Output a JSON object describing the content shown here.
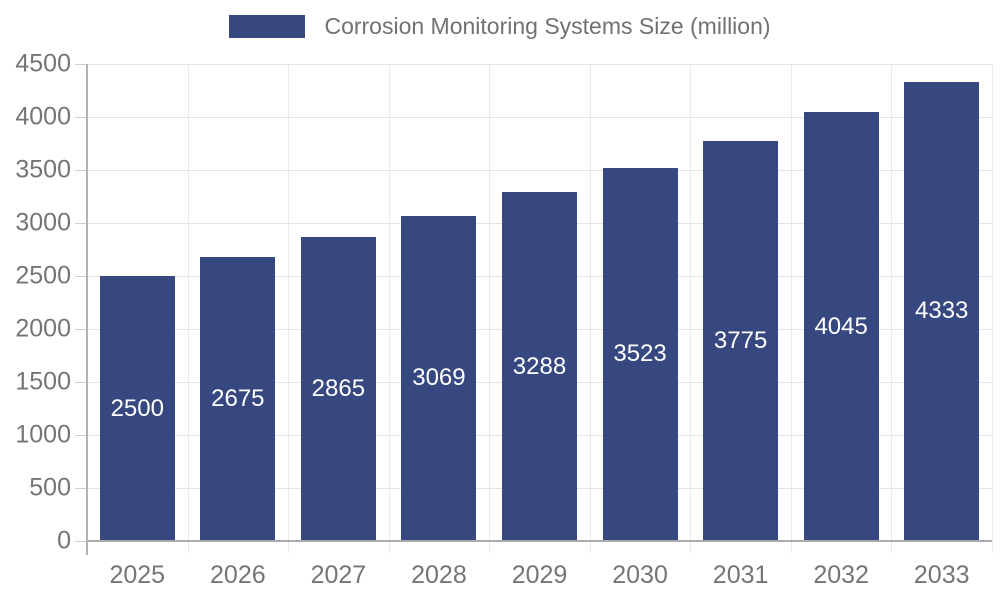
{
  "legend": {
    "label": "Corrosion Monitoring Systems Size (million)"
  },
  "colors": {
    "bar": "#374880",
    "grid": "#e3e3e5",
    "axis": "#ababaf",
    "tick_label": "#757579",
    "value_label": "#ffffff",
    "legend_text": "#6f7175"
  },
  "chart_data": {
    "type": "bar",
    "title": "Corrosion Monitoring Systems Size (million)",
    "categories": [
      "2025",
      "2026",
      "2027",
      "2028",
      "2029",
      "2030",
      "2031",
      "2032",
      "2033"
    ],
    "values": [
      2500,
      2675,
      2865,
      3069,
      3288,
      3523,
      3775,
      4045,
      4333
    ],
    "xlabel": "",
    "ylabel": "",
    "ylim": [
      0,
      4500
    ],
    "ytick_step": 500,
    "grid": true,
    "legend_position": "top",
    "value_labels": "inside-center"
  }
}
